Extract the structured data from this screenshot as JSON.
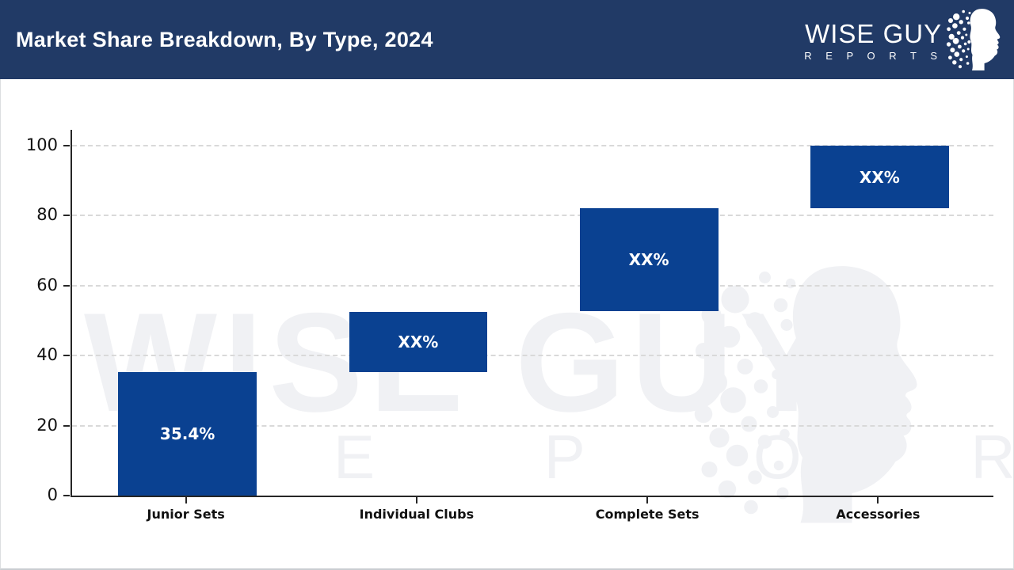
{
  "header": {
    "title": "Market Share Breakdown, By Type, 2024",
    "logo": {
      "line1": "WISE GUY",
      "line2": "R E P O R T S"
    }
  },
  "watermark": {
    "line1": "WISE GUY",
    "line2": "R E P O R T S"
  },
  "chart_data": {
    "type": "bar",
    "subtype": "waterfall",
    "title": "Market Share Breakdown, By Type, 2024",
    "xlabel": "",
    "ylabel": "",
    "categories": [
      "Junior Sets",
      "Individual Clubs",
      "Complete Sets",
      "Accessories"
    ],
    "segments": [
      {
        "category": "Junior Sets",
        "start": 0,
        "end": 35.4,
        "label": "35.4%"
      },
      {
        "category": "Individual Clubs",
        "start": 35.4,
        "end": 52.6,
        "label": "XX%"
      },
      {
        "category": "Complete Sets",
        "start": 52.6,
        "end": 82.1,
        "label": "XX%"
      },
      {
        "category": "Accessories",
        "start": 82.1,
        "end": 100,
        "label": "XX%"
      }
    ],
    "y_ticks": [
      0,
      20,
      40,
      60,
      80,
      100
    ],
    "ylim": [
      0,
      100
    ],
    "grid": "horizontal-dashed",
    "legend": "none",
    "bar_color": "#0a4191",
    "bar_label_color": "#ffffff"
  },
  "colors": {
    "header_bg": "#213a66",
    "bar": "#0a4191",
    "axis": "#262626",
    "gridline": "#d9d9d9",
    "watermark": "#f0f1f4"
  }
}
